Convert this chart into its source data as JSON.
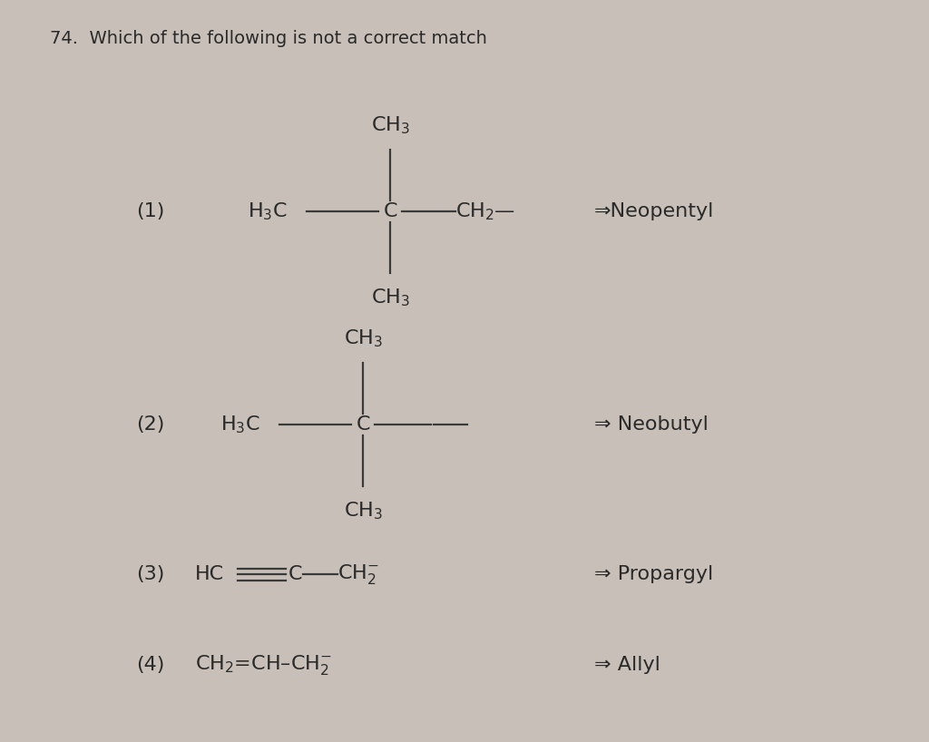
{
  "background_color": "#c8c0b8",
  "paper_color": "#e8e4de",
  "text_color": "#2a2a2a",
  "bond_color": "#3a3a3a",
  "figsize": [
    10.24,
    8.18
  ],
  "dpi": 100,
  "title": "74.  Which of the following is not a correct match",
  "items": [
    {
      "num": "(1)",
      "name": "⇒Neopentyl",
      "type": "neopentyl"
    },
    {
      "num": "(2)",
      "name": "⇒ Neobutyl",
      "type": "neobutyl"
    },
    {
      "num": "(3)",
      "formula": "HC≡C—CH₂⁻",
      "name": "⇒ Propargyl",
      "type": "propargyl"
    },
    {
      "num": "(4)",
      "formula": "CH₂=CH–CH₂⁻",
      "name": "⇒ Allyl",
      "type": "allyl"
    }
  ],
  "font_size_title": 14,
  "font_size_main": 16,
  "font_size_chem": 16
}
